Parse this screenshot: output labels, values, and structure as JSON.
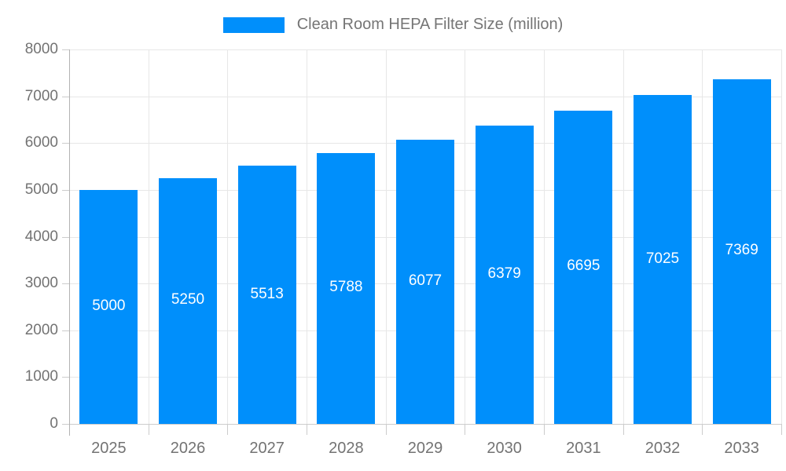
{
  "chart_data": {
    "type": "bar",
    "title": "Clean Room HEPA Filter Size (million)",
    "categories": [
      "2025",
      "2026",
      "2027",
      "2028",
      "2029",
      "2030",
      "2031",
      "2032",
      "2033"
    ],
    "values": [
      5000,
      5250,
      5513,
      5788,
      6077,
      6379,
      6695,
      7025,
      7369
    ],
    "xlabel": "",
    "ylabel": "",
    "ylim": [
      0,
      8000
    ],
    "ytick_step": 1000,
    "grid": true,
    "legend_position": "top",
    "colors": {
      "bar": "#008FFB",
      "bar_label": "#ffffff",
      "axis_label": "#737373",
      "legend_text": "#757575",
      "gridline": "#e7e7e7",
      "axis_line": "#b3b3b3",
      "tick": "#cccccc",
      "background": "#ffffff"
    }
  }
}
